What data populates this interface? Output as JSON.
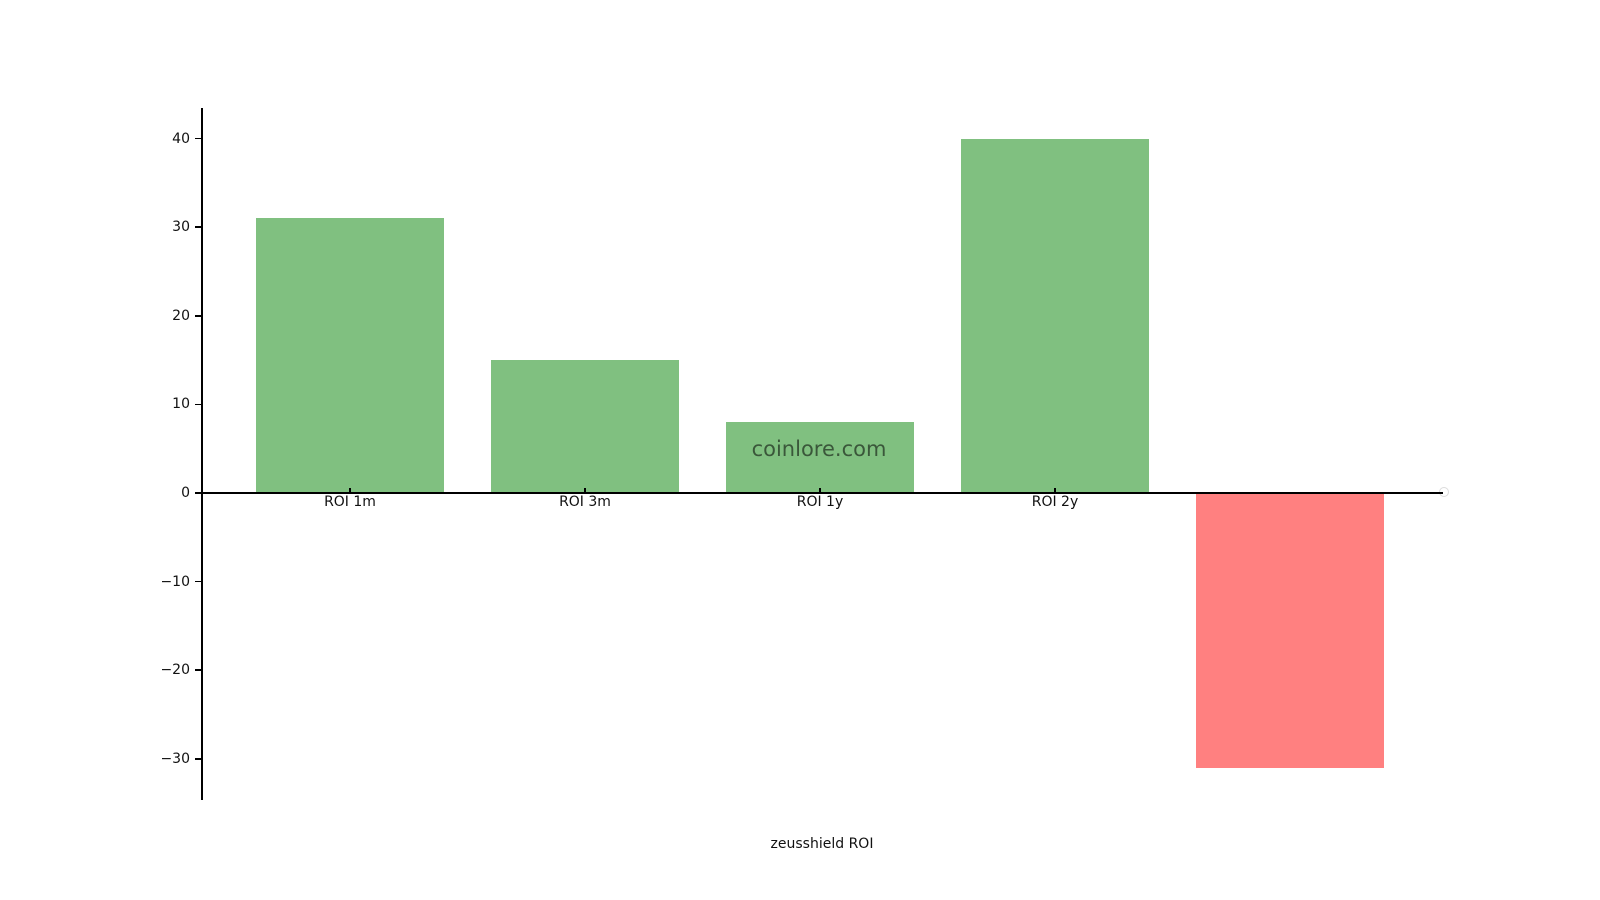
{
  "chart_data": {
    "type": "bar",
    "title": "",
    "xlabel": "zeusshield ROI",
    "ylabel": "",
    "categories": [
      "ROI 1m",
      "ROI 3m",
      "ROI 1y",
      "ROI 2y",
      ""
    ],
    "values": [
      31,
      15,
      8,
      40,
      -31
    ],
    "bar_colors": [
      "#80C080",
      "#80C080",
      "#80C080",
      "#80C080",
      "#FF8080"
    ],
    "positive_color": "#80C080",
    "negative_color": "#FF8080",
    "baseline": 0,
    "y_ticks": [
      40,
      30,
      20,
      10,
      0,
      -10,
      -20,
      -30
    ],
    "y_tick_labels": [
      "40",
      "30",
      "20",
      "10",
      "0",
      "−10",
      "−20",
      "−30"
    ],
    "ylim": [
      -34.55,
      43.55
    ],
    "grid": false,
    "legend": "none",
    "axis_color": "#000000"
  },
  "watermark": {
    "text": "coinlore.com"
  },
  "labels": {
    "xlabel": "zeusshield ROI"
  }
}
